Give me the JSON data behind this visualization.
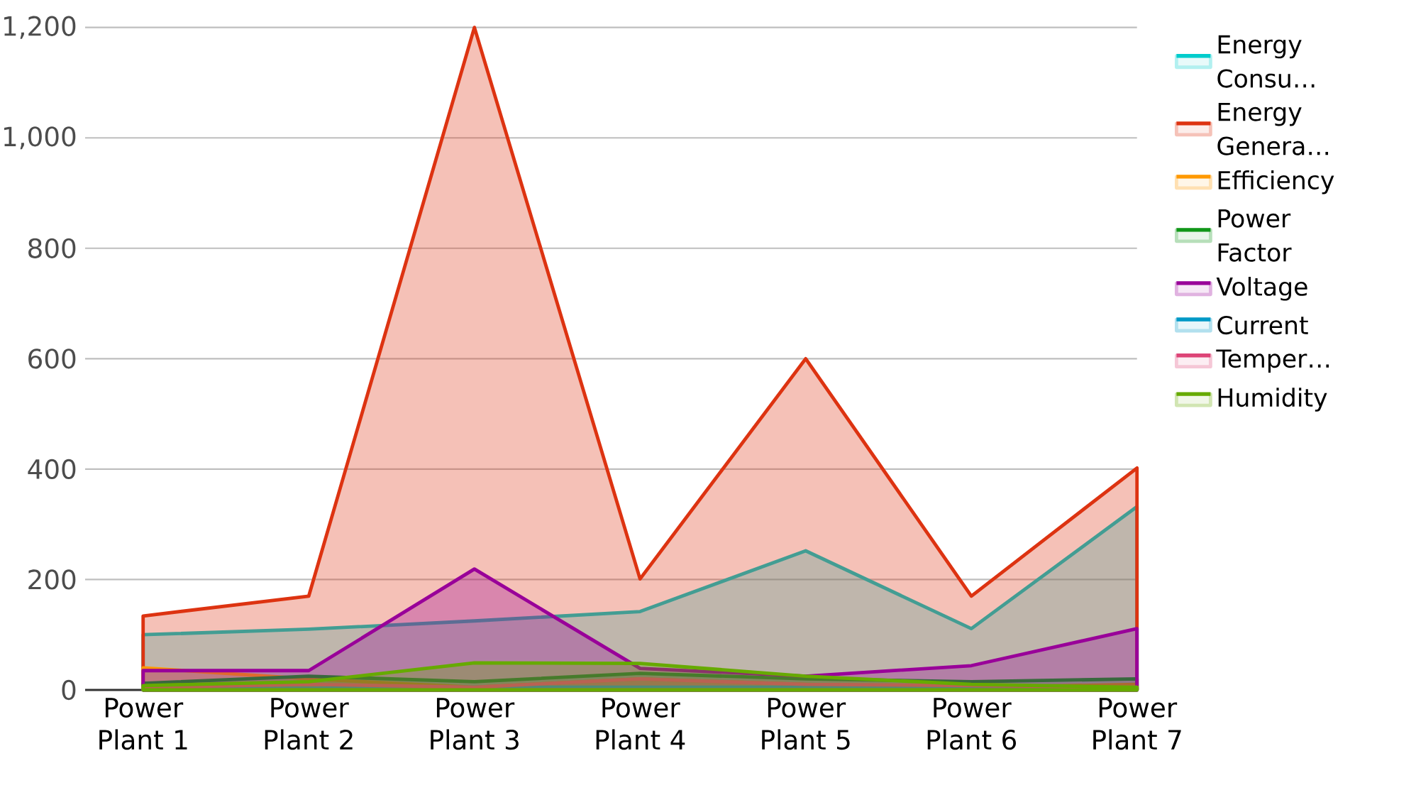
{
  "chart_data": {
    "type": "area",
    "categories": [
      "Power Plant 1",
      "Power Plant 2",
      "Power Plant 3",
      "Power Plant 4",
      "Power Plant 5",
      "Power Plant 6",
      "Power Plant 7"
    ],
    "series": [
      {
        "name": "Energy Consu…",
        "color": "#00cccc",
        "values": [
          100,
          110,
          125,
          142,
          252,
          111,
          332
        ]
      },
      {
        "name": "Energy Genera…",
        "color": "#dd3311",
        "values": [
          134,
          170,
          1200,
          201,
          600,
          170,
          402
        ]
      },
      {
        "name": "Efficiency",
        "color": "#ff9900",
        "values": [
          40,
          20,
          5,
          20,
          10,
          5,
          10
        ]
      },
      {
        "name": "Power Factor",
        "color": "#109618",
        "values": [
          12,
          25,
          15,
          30,
          20,
          15,
          20
        ]
      },
      {
        "name": "Voltage",
        "color": "#990099",
        "values": [
          35,
          35,
          219,
          39,
          25,
          44,
          111
        ]
      },
      {
        "name": "Current",
        "color": "#0099c6",
        "values": [
          2,
          3,
          5,
          5,
          5,
          3,
          3
        ]
      },
      {
        "name": "Temper…",
        "color": "#dd4477",
        "values": [
          5,
          10,
          5,
          20,
          10,
          8,
          5
        ]
      },
      {
        "name": "Humidity",
        "color": "#66aa00",
        "values": [
          8,
          15,
          49,
          48,
          25,
          10,
          5
        ]
      }
    ],
    "ylim": [
      0,
      1200
    ],
    "yticks": [
      0,
      200,
      400,
      600,
      800,
      {
        "value": 1000,
        "label": "1,000"
      },
      {
        "value": 1200,
        "label": "1,200"
      }
    ],
    "grid": "y",
    "legend": "right"
  }
}
